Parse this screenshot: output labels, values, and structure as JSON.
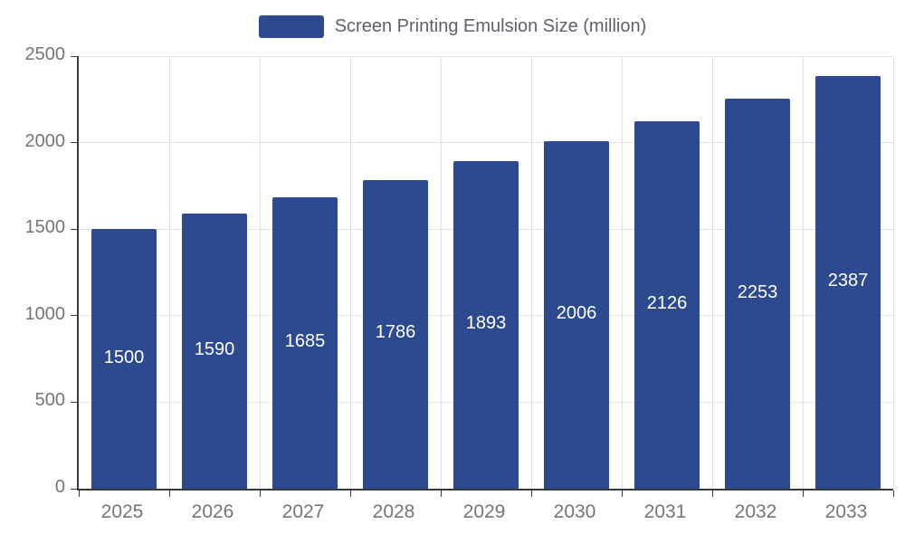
{
  "legend": {
    "label": "Screen Printing Emulsion Size (million)"
  },
  "colors": {
    "bar": "#2e4a8f",
    "grid": "#e2e2e2",
    "axis": "#3a3a3a",
    "axis_label": "#757575",
    "value_label": "#ffffff",
    "legend_text": "#5f5f6e"
  },
  "chart_data": {
    "type": "bar",
    "title": "Screen Printing Emulsion Size (million)",
    "categories": [
      "2025",
      "2026",
      "2027",
      "2028",
      "2029",
      "2030",
      "2031",
      "2032",
      "2033"
    ],
    "values": [
      1500,
      1590,
      1685,
      1786,
      1893,
      2006,
      2126,
      2253,
      2387
    ],
    "xlabel": "",
    "ylabel": "",
    "ylim": [
      0,
      2500
    ],
    "yticks": [
      0,
      500,
      1000,
      1500,
      2000,
      2500
    ],
    "grid": true,
    "legend_position": "top-center",
    "value_label_position": "inside-center"
  }
}
